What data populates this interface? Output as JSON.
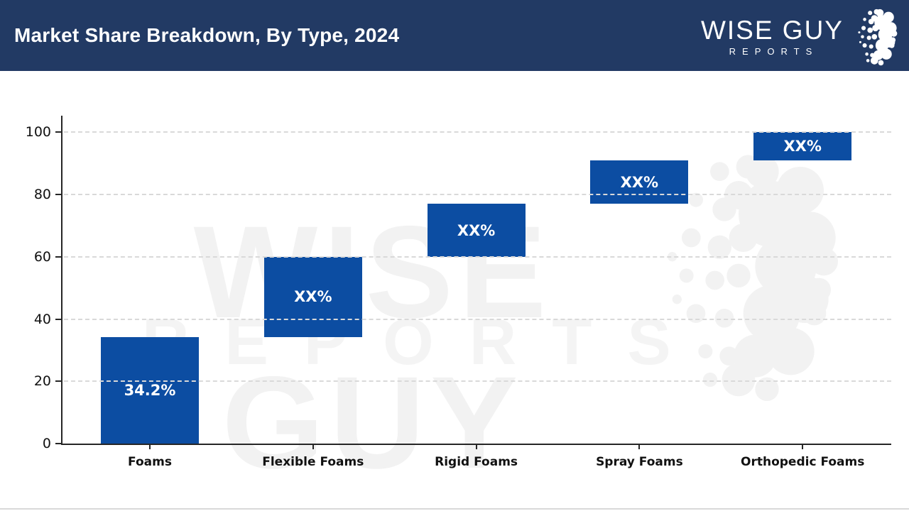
{
  "header": {
    "title": "Market Share Breakdown, By Type, 2024"
  },
  "logo": {
    "name": "WISE GUY",
    "subtitle": "REPORTS",
    "head_icon": "dotted-head-profile"
  },
  "watermark": {
    "line1": "WISE GUY",
    "line2": "REPORTS"
  },
  "colors": {
    "header_bg": "#223a64",
    "bar": "#0c4da2",
    "bar_label": "#ffffff",
    "gridline": "#d9d9d9",
    "axis": "#262626",
    "watermark": "#f2f2f2"
  },
  "chart_data": {
    "type": "bar",
    "subtype": "waterfall-floating-bars",
    "title": "Market Share Breakdown, By Type, 2024",
    "categories": [
      "Foams",
      "Flexible Foams",
      "Rigid Foams",
      "Spray Foams",
      "Orthopedic Foams"
    ],
    "segments": [
      {
        "category": "Foams",
        "start": 0,
        "end": 34.2,
        "label": "34.2%"
      },
      {
        "category": "Flexible Foams",
        "start": 34.2,
        "end": 60,
        "label": "XX%"
      },
      {
        "category": "Rigid Foams",
        "start": 60,
        "end": 77,
        "label": "XX%"
      },
      {
        "category": "Spray Foams",
        "start": 77,
        "end": 91,
        "label": "XX%"
      },
      {
        "category": "Orthopedic Foams",
        "start": 91,
        "end": 100,
        "label": "XX%"
      }
    ],
    "xlabel": "",
    "ylabel": "",
    "ylim": [
      0,
      105
    ],
    "yticks": [
      0,
      20,
      40,
      60,
      80,
      100
    ],
    "grid": "horizontal-dashed-on-top-of-bars",
    "legend": "none",
    "bar_color": "#0c4da2",
    "label_color": "#ffffff"
  }
}
